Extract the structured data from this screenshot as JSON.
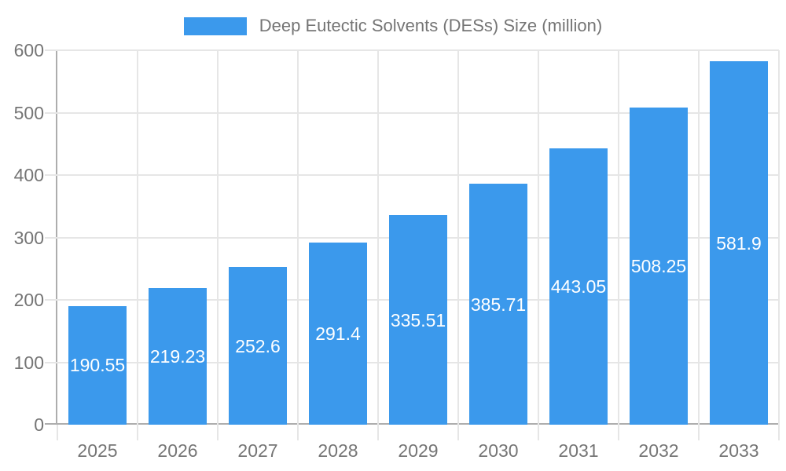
{
  "chart_data": {
    "type": "bar",
    "title": "Deep Eutectic Solvents (DESs) Size (million)",
    "categories": [
      "2025",
      "2026",
      "2027",
      "2028",
      "2029",
      "2030",
      "2031",
      "2032",
      "2033"
    ],
    "values": [
      190.55,
      219.23,
      252.6,
      291.4,
      335.51,
      385.71,
      443.05,
      508.25,
      581.9
    ],
    "value_labels": [
      "190.55",
      "219.23",
      "252.6",
      "291.4",
      "335.51",
      "385.71",
      "443.05",
      "508.25",
      "581.9"
    ],
    "xlabel": "",
    "ylabel": "",
    "ylim": [
      0,
      600
    ],
    "yticks": [
      0,
      100,
      200,
      300,
      400,
      500,
      600
    ],
    "grid": true,
    "legend_position": "top",
    "value_label_position": "inside-center"
  },
  "colors": {
    "bar": "#3b99ec",
    "axis_text": "#757575",
    "grid_line": "#e6e6e6",
    "axis_line": "#adadad",
    "value_label": "#ffffff",
    "background": "#ffffff"
  }
}
